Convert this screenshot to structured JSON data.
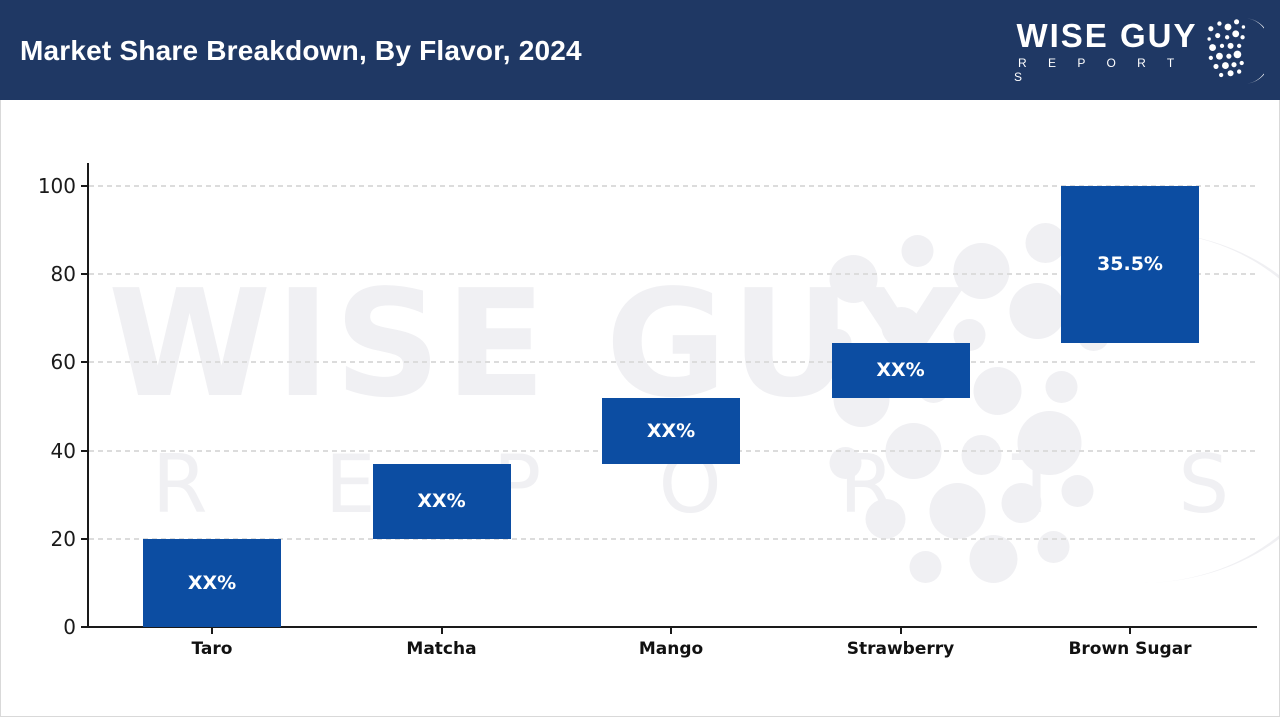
{
  "header": {
    "title": "Market Share Breakdown, By Flavor, 2024",
    "logo": {
      "name": "WISE GUY",
      "subname": "R E P O R T S"
    }
  },
  "watermark": {
    "name": "WISE GUY",
    "subname": "R E P O R T S"
  },
  "chart_data": {
    "type": "bar",
    "subtype": "waterfall",
    "title": "Market Share Breakdown, By Flavor, 2024",
    "xlabel": "",
    "ylabel": "",
    "categories": [
      "Taro",
      "Matcha",
      "Mango",
      "Strawberry",
      "Brown Sugar"
    ],
    "segments": [
      {
        "category": "Taro",
        "start": 0,
        "end": 20,
        "label": "XX%"
      },
      {
        "category": "Matcha",
        "start": 20,
        "end": 37,
        "label": "XX%"
      },
      {
        "category": "Mango",
        "start": 37,
        "end": 52,
        "label": "XX%"
      },
      {
        "category": "Strawberry",
        "start": 52,
        "end": 64.5,
        "label": "XX%"
      },
      {
        "category": "Brown Sugar",
        "start": 64.5,
        "end": 100,
        "label": "35.5%",
        "value": 35.5
      }
    ],
    "yticks": [
      0,
      20,
      40,
      60,
      80,
      100
    ],
    "ylim": [
      0,
      106
    ],
    "grid": "horizontal-dashed",
    "legend": "none",
    "masked_label": "XX%",
    "bar_color": "#0c4da2",
    "bar_label_color": "#ffffff"
  },
  "colors": {
    "header_bg": "#1f3864",
    "bar": "#0c4da2",
    "grid": "#dcdcdc",
    "axis": "#1a1a1a",
    "watermark": "#f0f0f3",
    "page_bg": "#ffffff"
  }
}
